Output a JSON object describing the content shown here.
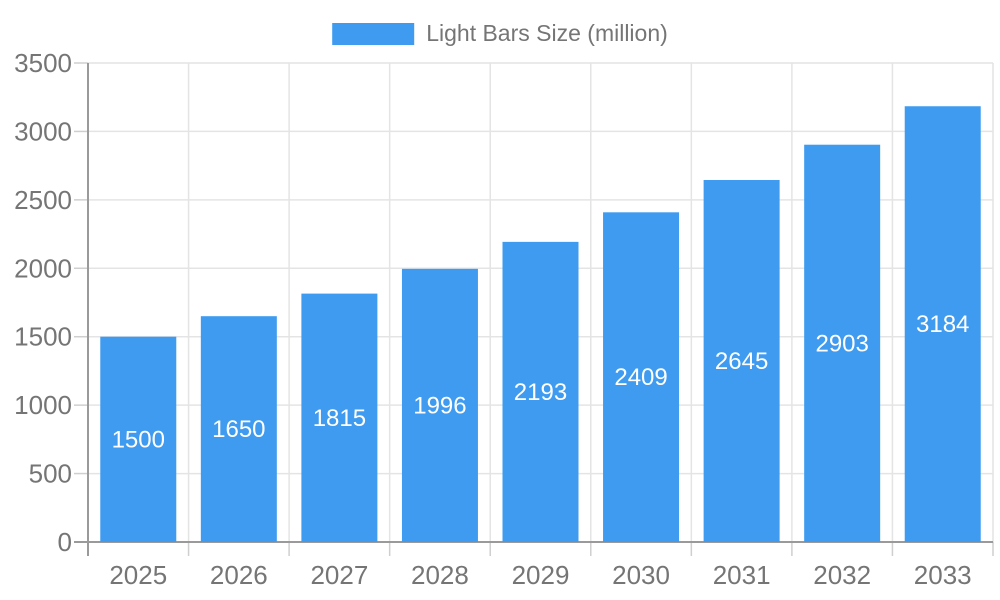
{
  "legend": {
    "label": "Light Bars Size (million)",
    "swatch_color": "#3E9BF0"
  },
  "colors": {
    "bar": "#3E9BF0",
    "gridline": "#e4e4e4",
    "axis_line": "#9a9a9a",
    "tick": "#cfcfcf",
    "axis_text": "#757575",
    "value_text": "#ffffff",
    "background": "#ffffff"
  },
  "chart_data": {
    "type": "bar",
    "title": "Light Bars Size (million)",
    "categories": [
      "2025",
      "2026",
      "2027",
      "2028",
      "2029",
      "2030",
      "2031",
      "2032",
      "2033"
    ],
    "values": [
      1500,
      1650,
      1815,
      1996,
      2193,
      2409,
      2645,
      2903,
      3184
    ],
    "xlabel": "",
    "ylabel": "",
    "ylim": [
      0,
      3500
    ],
    "ytick_step": 500,
    "ytick_labels": [
      "0",
      "500",
      "1000",
      "1500",
      "2000",
      "2500",
      "3000",
      "3500"
    ],
    "grid": true,
    "legend_position": "top-center",
    "value_label_position": "inside-center"
  }
}
